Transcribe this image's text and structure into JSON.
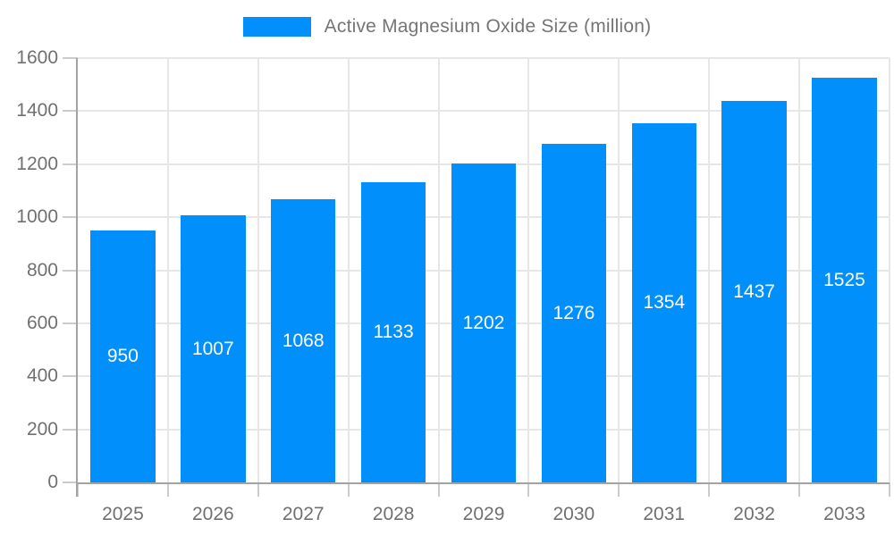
{
  "legend": {
    "label": "Active Magnesium Oxide Size (million)"
  },
  "chart_data": {
    "type": "bar",
    "title": "Active Magnesium Oxide Size (million)",
    "categories": [
      "2025",
      "2026",
      "2027",
      "2028",
      "2029",
      "2030",
      "2031",
      "2032",
      "2033"
    ],
    "values": [
      950,
      1007,
      1068,
      1133,
      1202,
      1276,
      1354,
      1437,
      1525
    ],
    "xlabel": "",
    "ylabel": "",
    "ylim": [
      0,
      1600
    ],
    "ytick_step": 200,
    "ytick_labels": [
      "0",
      "200",
      "400",
      "600",
      "800",
      "1000",
      "1200",
      "1400",
      "1600"
    ],
    "grid": true,
    "legend_position": "top",
    "value_labels": "centered-white",
    "colors": {
      "bar": "#008FFB",
      "grid": "#e7e7e7",
      "axis": "#a3a3a3",
      "tick": "#cccccc",
      "axis_text": "#707070",
      "legend_text": "#757575",
      "value_text": "#ffffff",
      "background": "#ffffff"
    }
  }
}
